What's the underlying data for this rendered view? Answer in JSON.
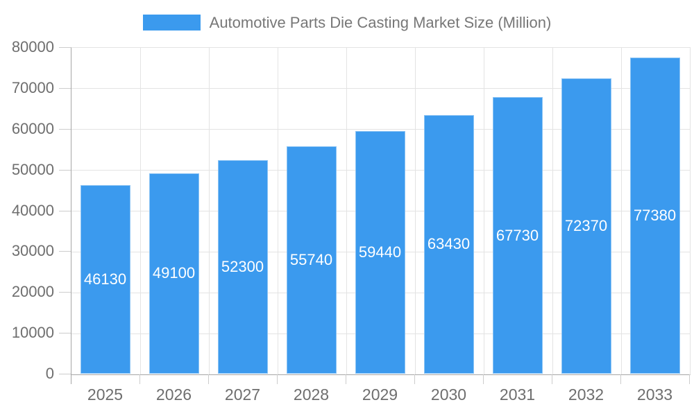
{
  "chart": {
    "legend": {
      "label": "Automotive Parts Die Casting Market Size (Million)"
    },
    "colors": {
      "bar": "#3B9AEE",
      "bar_edge": "#8CC4F4",
      "grid": "#E3E3E3",
      "axis": "#A6A6A6",
      "tick": "#CCCCCC",
      "axis_text": "#6E6E6E",
      "legend_text": "#777777",
      "value_label": "#FFFFFF"
    }
  },
  "chart_data": {
    "type": "bar",
    "title": "Automotive Parts Die Casting Market Size (Million)",
    "categories": [
      "2025",
      "2026",
      "2027",
      "2028",
      "2029",
      "2030",
      "2031",
      "2032",
      "2033"
    ],
    "values": [
      46130,
      49100,
      52300,
      55740,
      59440,
      63430,
      67730,
      72370,
      77380
    ],
    "xlabel": "",
    "ylabel": "",
    "ylim": [
      0,
      80000
    ],
    "ytick_step": 10000,
    "ytick_labels": [
      "0",
      "10000",
      "20000",
      "30000",
      "40000",
      "50000",
      "60000",
      "70000",
      "80000"
    ],
    "grid": true,
    "legend_position": "top-center",
    "value_label_position": "inside-center"
  }
}
